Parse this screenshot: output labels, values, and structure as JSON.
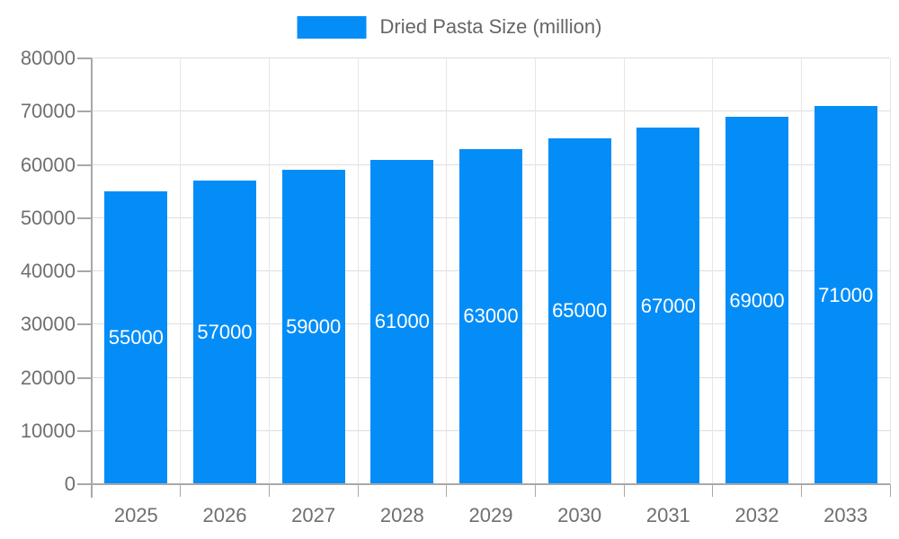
{
  "legend": {
    "label": "Dried Pasta Size (million)"
  },
  "chart_data": {
    "type": "bar",
    "title": "Dried Pasta Size (million)",
    "categories": [
      "2025",
      "2026",
      "2027",
      "2028",
      "2029",
      "2030",
      "2031",
      "2032",
      "2033"
    ],
    "values": [
      55000,
      57000,
      59000,
      61000,
      63000,
      65000,
      67000,
      69000,
      71000
    ],
    "value_labels": [
      "55000",
      "57000",
      "59000",
      "61000",
      "63000",
      "65000",
      "67000",
      "69000",
      "71000"
    ],
    "xlabel": "",
    "ylabel": "",
    "ylim": [
      0,
      80000
    ],
    "yticks": [
      0,
      10000,
      20000,
      30000,
      40000,
      50000,
      60000,
      70000,
      80000
    ],
    "ytick_labels": [
      "0",
      "10000",
      "20000",
      "30000",
      "40000",
      "50000",
      "60000",
      "70000",
      "80000"
    ],
    "grid": true,
    "legend_position": "top-center",
    "value_label_position": "inside-center"
  },
  "colors": {
    "bar": "#058df7",
    "bar_label_text": "#ffffff",
    "axis_text": "#6f6f6f",
    "legend_text": "#666666",
    "h_gridline": "#dedede",
    "v_gridline": "#e6e6e6",
    "axis_line": "#a8a8a8",
    "tick": "#a8a8a8"
  }
}
